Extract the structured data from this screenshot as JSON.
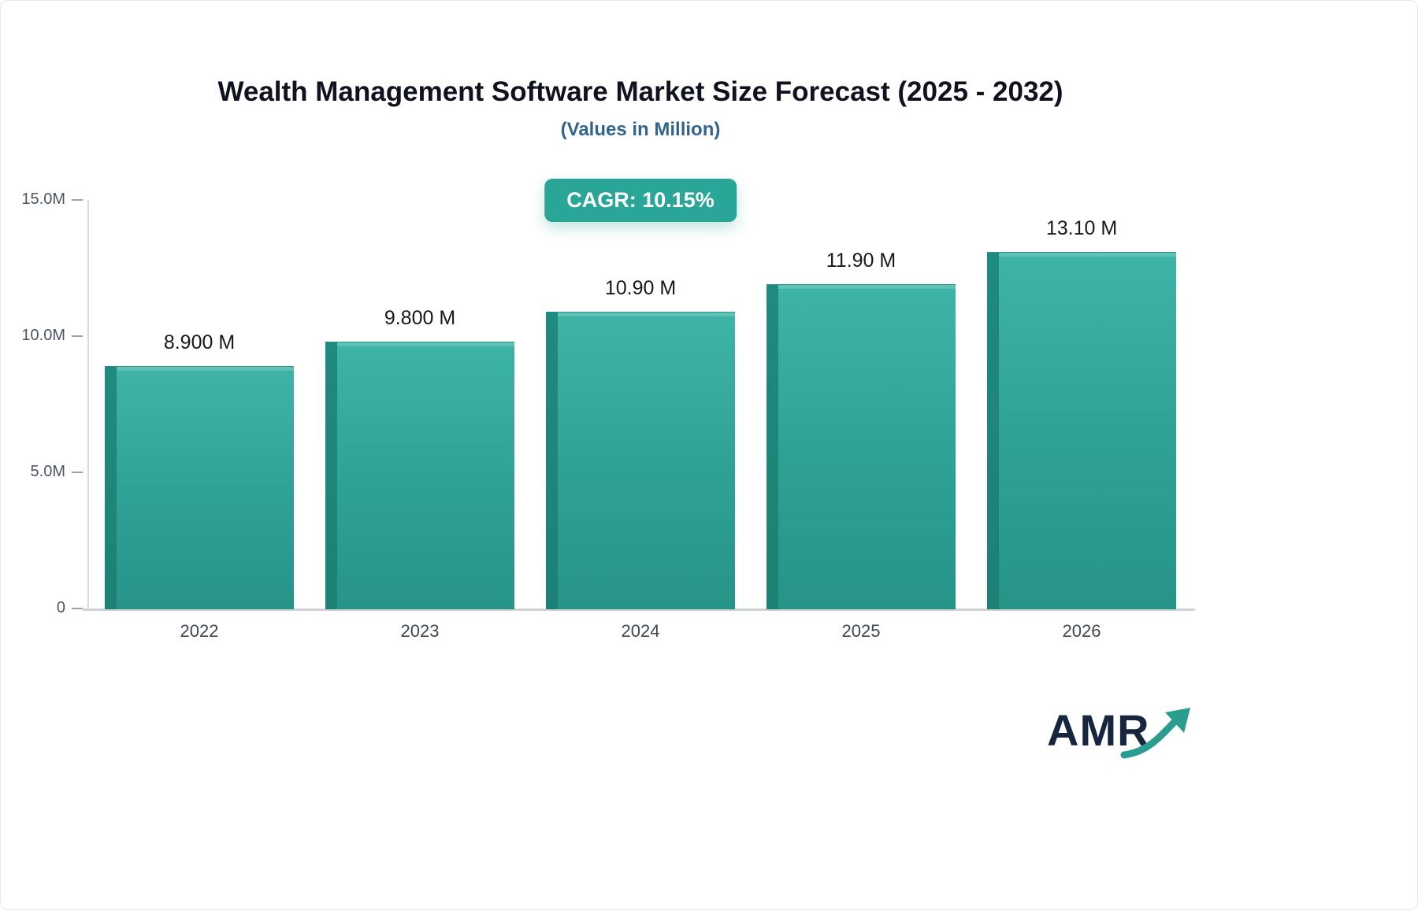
{
  "header": {
    "title": "Wealth Management Software Market Size Forecast (2025 - 2032)",
    "subtitle": "(Values in Million)"
  },
  "badge": {
    "label": "CAGR: 10.15%"
  },
  "chart_data": {
    "type": "bar",
    "title": "Wealth Management Software Market Size Forecast (2025 - 2032)",
    "subtitle": "(Values in Million)",
    "annotation": "CAGR: 10.15%",
    "categories": [
      "2022",
      "2023",
      "2024",
      "2025",
      "2026"
    ],
    "values": [
      8.9,
      9.8,
      10.9,
      11.9,
      13.1
    ],
    "value_labels": [
      "8.900 M",
      "9.800 M",
      "10.90 M",
      "11.90 M",
      "13.10 M"
    ],
    "xlabel": "",
    "ylabel": "",
    "ylim": [
      0,
      15
    ],
    "yticks": [
      {
        "value": 15,
        "label": "15.0M"
      },
      {
        "value": 10,
        "label": "10.0M"
      },
      {
        "value": 5,
        "label": "5.0M"
      },
      {
        "value": 0,
        "label": "0"
      }
    ],
    "grid": false,
    "legend": false
  },
  "colors": {
    "bar_face": "#2fa89a",
    "bar_side": "#1f8a7e",
    "badge_bg": "#29a698",
    "subtitle_text": "#33658a",
    "logo_navy": "#17263f",
    "logo_arrow": "#2a9d8f"
  },
  "logo": {
    "text": "AMR"
  }
}
